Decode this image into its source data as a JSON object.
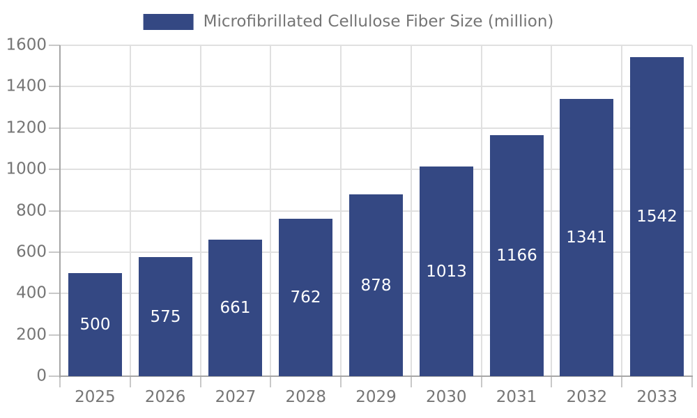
{
  "legend": {
    "label": "Microfibrillated Cellulose Fiber Size (million)"
  },
  "chart_data": {
    "type": "bar",
    "title": "Microfibrillated Cellulose Fiber Size (million)",
    "categories": [
      "2025",
      "2026",
      "2027",
      "2028",
      "2029",
      "2030",
      "2031",
      "2032",
      "2033"
    ],
    "values": [
      500,
      575,
      661,
      762,
      878,
      1013,
      1166,
      1341,
      1542
    ],
    "series_name": "Microfibrillated Cellulose Fiber Size (million)",
    "xlabel": "",
    "ylabel": "",
    "ylim": [
      0,
      1600
    ],
    "yticks": [
      0,
      200,
      400,
      600,
      800,
      1000,
      1200,
      1400,
      1600
    ],
    "grid": true,
    "legend_position": "top-center",
    "bar_value_labels_visible": true,
    "colors": {
      "bar": "#344883",
      "bar_label": "#ffffff",
      "axis_text": "#757575",
      "legend_text": "#757575",
      "grid_line": "#e0e0e0",
      "tick_line": "#c8c8c8",
      "axis_line": "#a6a6a6",
      "background": "#ffffff"
    }
  }
}
